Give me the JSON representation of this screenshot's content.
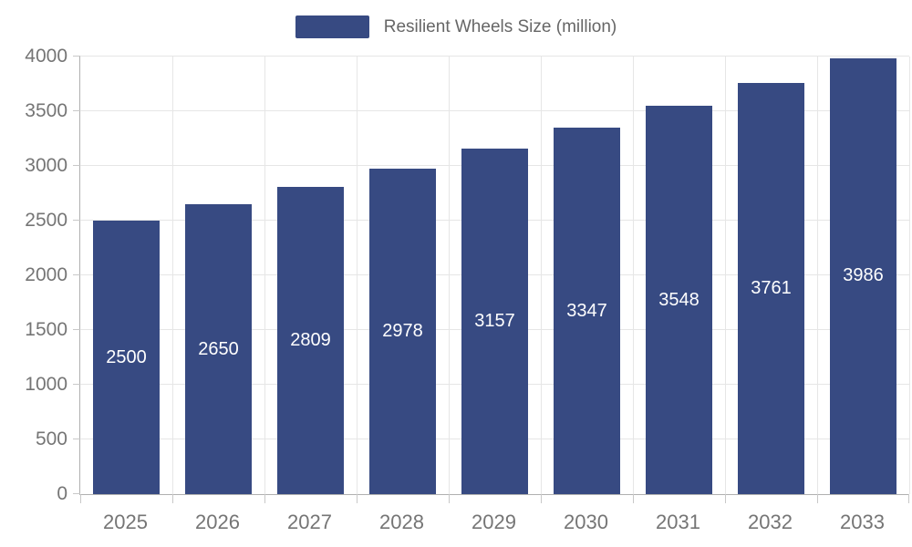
{
  "chart_data": {
    "type": "bar",
    "title": "",
    "legend": "Resilient Wheels Size (million)",
    "categories": [
      "2025",
      "2026",
      "2027",
      "2028",
      "2029",
      "2030",
      "2031",
      "2032",
      "2033"
    ],
    "values": [
      2500,
      2650,
      2809,
      2978,
      3157,
      3347,
      3548,
      3761,
      3986
    ],
    "xlabel": "",
    "ylabel": "",
    "ylim": [
      0,
      4000
    ],
    "yticks": [
      0,
      500,
      1000,
      1500,
      2000,
      2500,
      3000,
      3500,
      4000
    ],
    "grid": true,
    "legend_position": "top-center",
    "value_labels": "inside-center",
    "colors": {
      "bar": "#374a82",
      "value_label": "#ffffff",
      "axis_text": "#757575",
      "legend_text": "#666666",
      "gridline": "#e6e6e6",
      "axis_line": "#b0b0b0",
      "tick": "#c8c8c8",
      "background": "#ffffff"
    }
  }
}
